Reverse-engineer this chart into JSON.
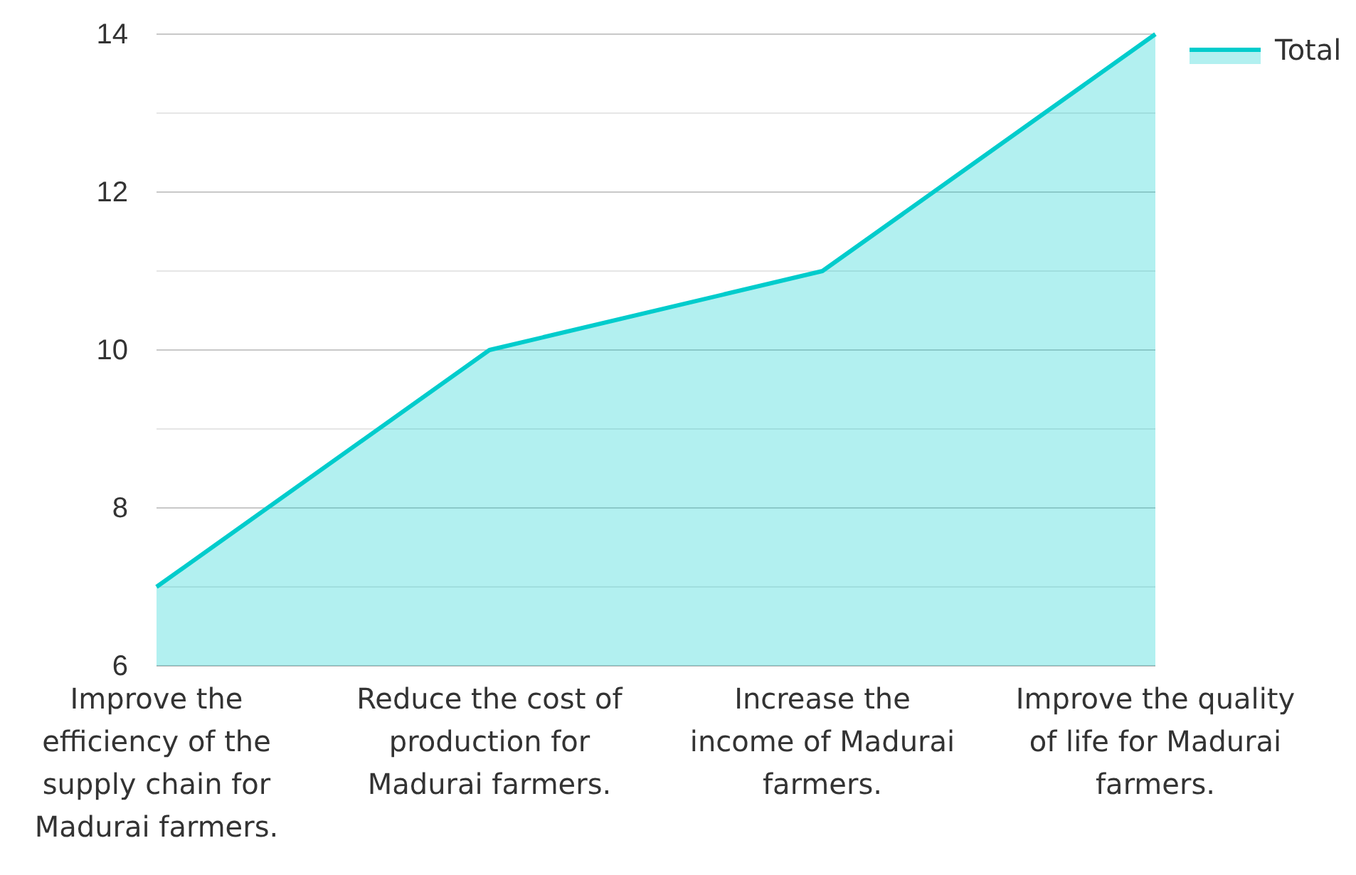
{
  "chart_data": {
    "type": "area",
    "categories": [
      "Improve the efficiency of the supply chain for Madurai farmers.",
      "Reduce the cost of production for Madurai farmers.",
      "Increase the income of Madurai farmers.",
      "Improve the quality of life for Madurai farmers."
    ],
    "series": [
      {
        "name": "Total",
        "color": "#00cccc",
        "values": [
          7,
          10,
          11,
          14
        ]
      }
    ],
    "ylim": [
      6,
      14
    ],
    "yticks": [
      6,
      {
        "value": 7,
        "label": null
      },
      8,
      {
        "value": 9,
        "label": null
      },
      10,
      {
        "value": 11,
        "label": null
      },
      12,
      {
        "value": 13,
        "label": null
      },
      14
    ],
    "grid": "y",
    "legend": "top right"
  }
}
